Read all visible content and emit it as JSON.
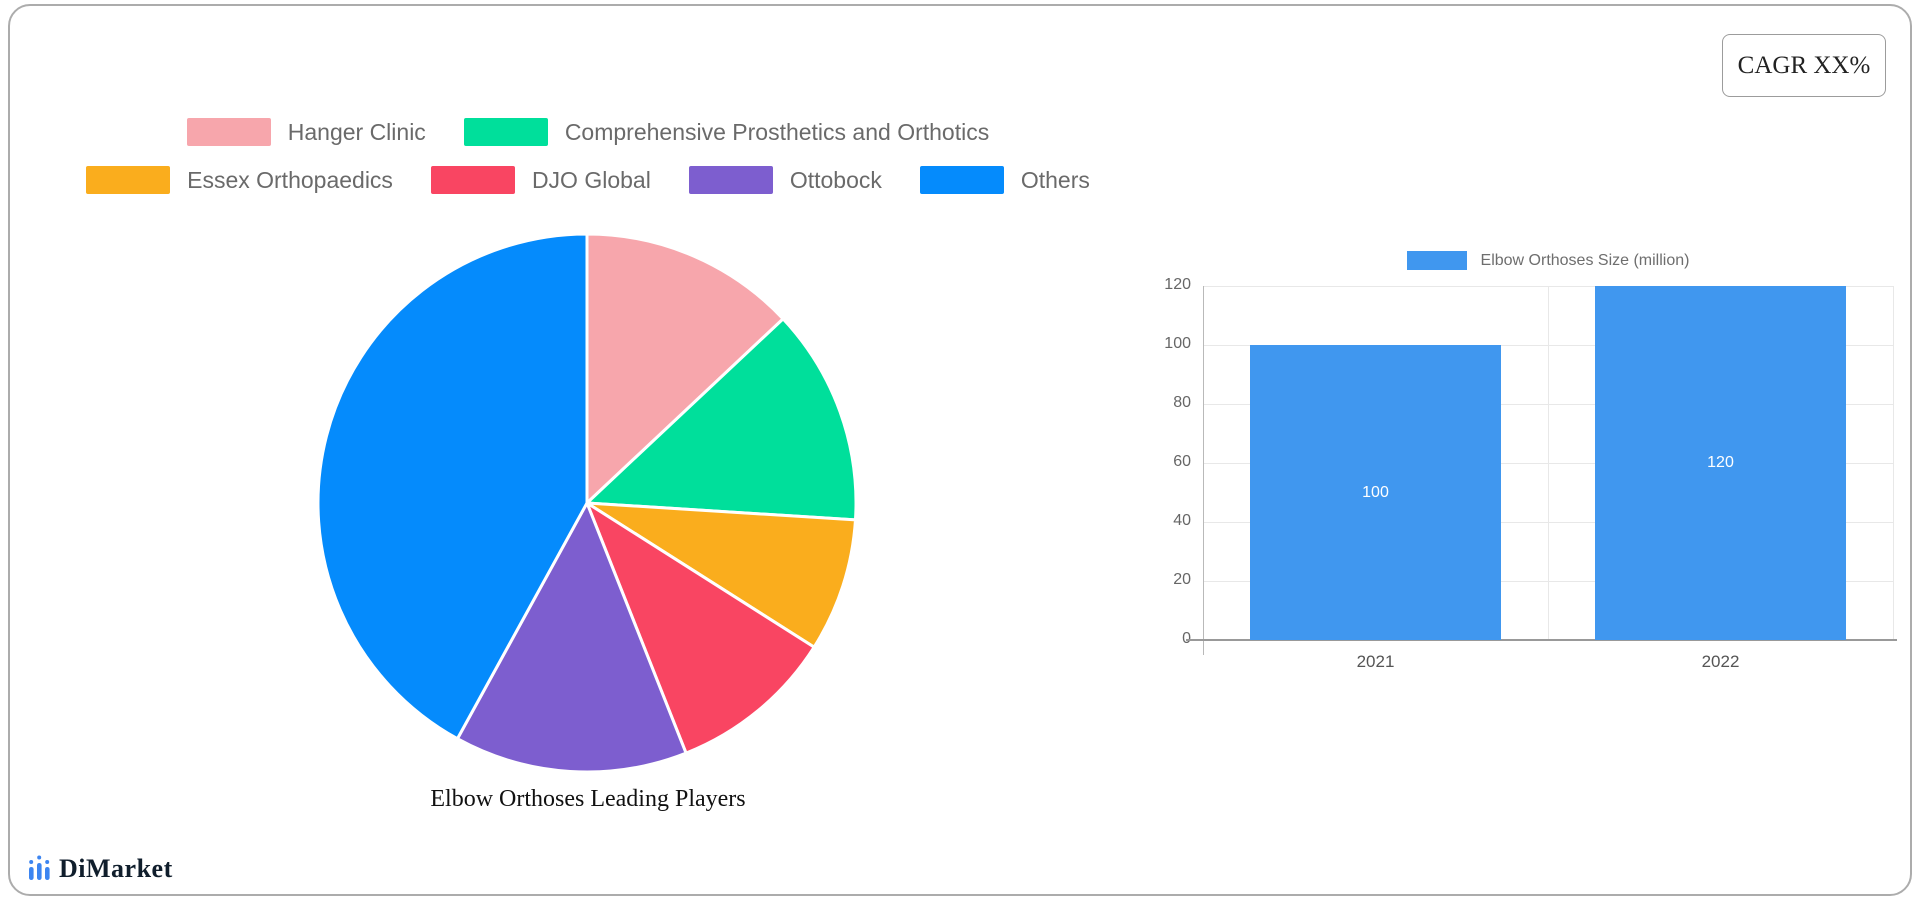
{
  "cagr": {
    "label": "CAGR XX%"
  },
  "brand": {
    "name": "DiMarket",
    "icon_color": "#3c85f1"
  },
  "chart_data": [
    {
      "type": "pie",
      "title": "Elbow Orthoses Leading Players",
      "labels": [
        "Hanger Clinic",
        "Comprehensive Prosthetics and Orthotics",
        "Essex Orthopaedics",
        "DJO Global",
        "Ottobock",
        "Others"
      ],
      "values": [
        13,
        13,
        8,
        10,
        14,
        42
      ],
      "colors": [
        "#f7a6ac",
        "#00df9b",
        "#faad1d",
        "#f94562",
        "#7d5ecf",
        "#058bfc"
      ],
      "legend_rows": [
        [
          0,
          1
        ],
        [
          2,
          3,
          4,
          5
        ]
      ],
      "legend_position": "top",
      "start_angle_deg": 0,
      "direction": "clockwise",
      "slice_border_color": "#ffffff"
    },
    {
      "type": "bar",
      "categories": [
        "2021",
        "2022"
      ],
      "series": [
        {
          "name": "Elbow Orthoses Size (million)",
          "values": [
            100,
            120
          ],
          "color": "#4097ef"
        }
      ],
      "bar_value_labels": [
        "100",
        "120"
      ],
      "ylim": [
        0,
        120
      ],
      "yticks": [
        0,
        20,
        40,
        60,
        80,
        100,
        120
      ],
      "grid": true,
      "legend_position": "top"
    }
  ]
}
